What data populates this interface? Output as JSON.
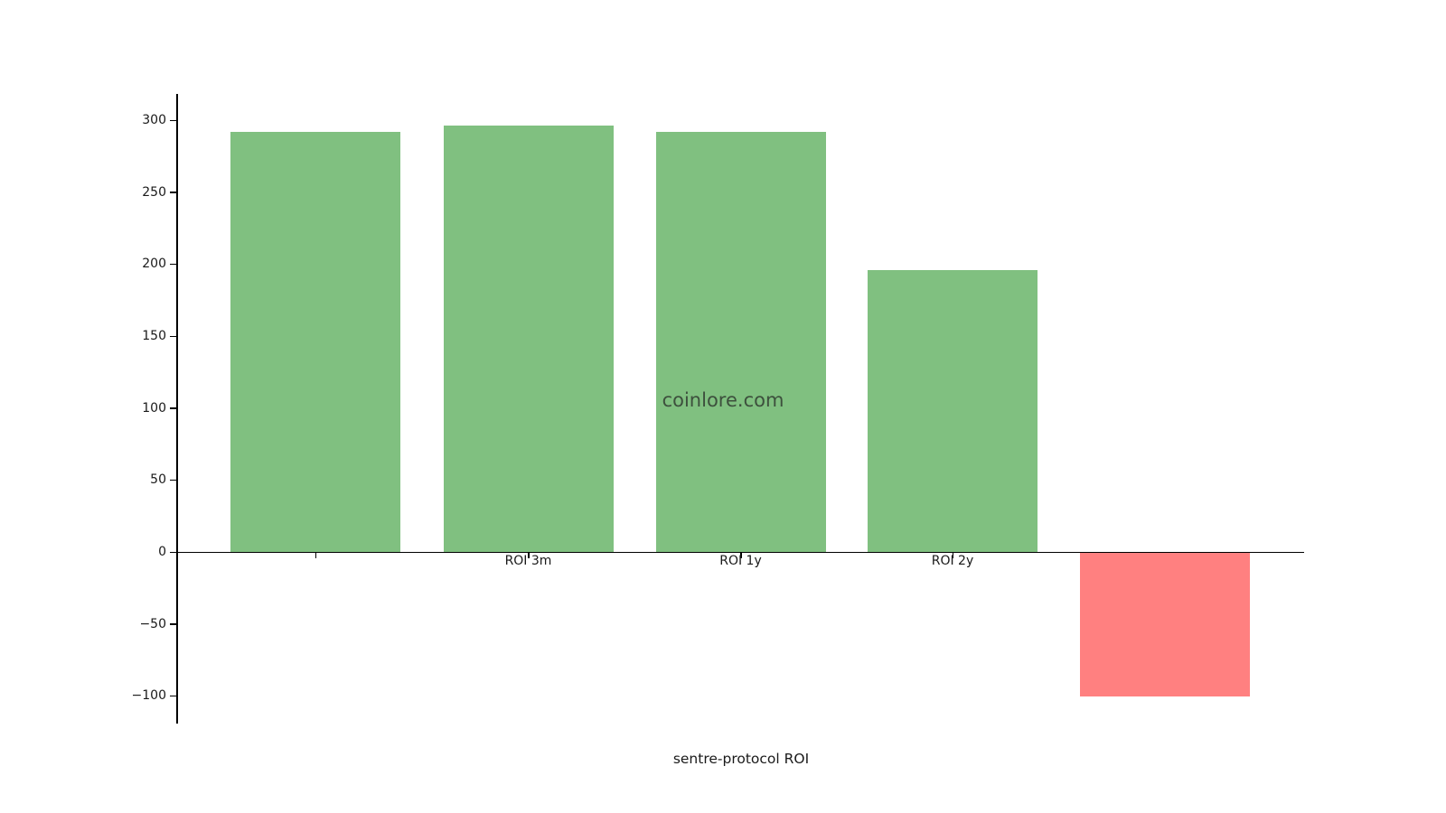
{
  "chart_data": {
    "type": "bar",
    "xlabel": "sentre-protocol ROI",
    "ylabel": "",
    "watermark": "coinlore.com",
    "categories": [
      "",
      "ROI 3m",
      "ROI 1y",
      "ROI 2y",
      ""
    ],
    "values": [
      292,
      296,
      292,
      196,
      -100
    ],
    "bar_colors": [
      "#80c080",
      "#80c080",
      "#80c080",
      "#80c080",
      "#ff8080"
    ],
    "positive_color": "#80c080",
    "negative_color": "#ff8080",
    "yticks": [
      300,
      250,
      200,
      150,
      100,
      50,
      0,
      -50,
      -100
    ],
    "ylim": [
      -119,
      318
    ],
    "xtick_marks": [
      true,
      true,
      true,
      true,
      false
    ],
    "grid": false,
    "legend": null,
    "axis_color": "#000000",
    "text_color": "#1a1a1a",
    "background_color": "#ffffff"
  }
}
